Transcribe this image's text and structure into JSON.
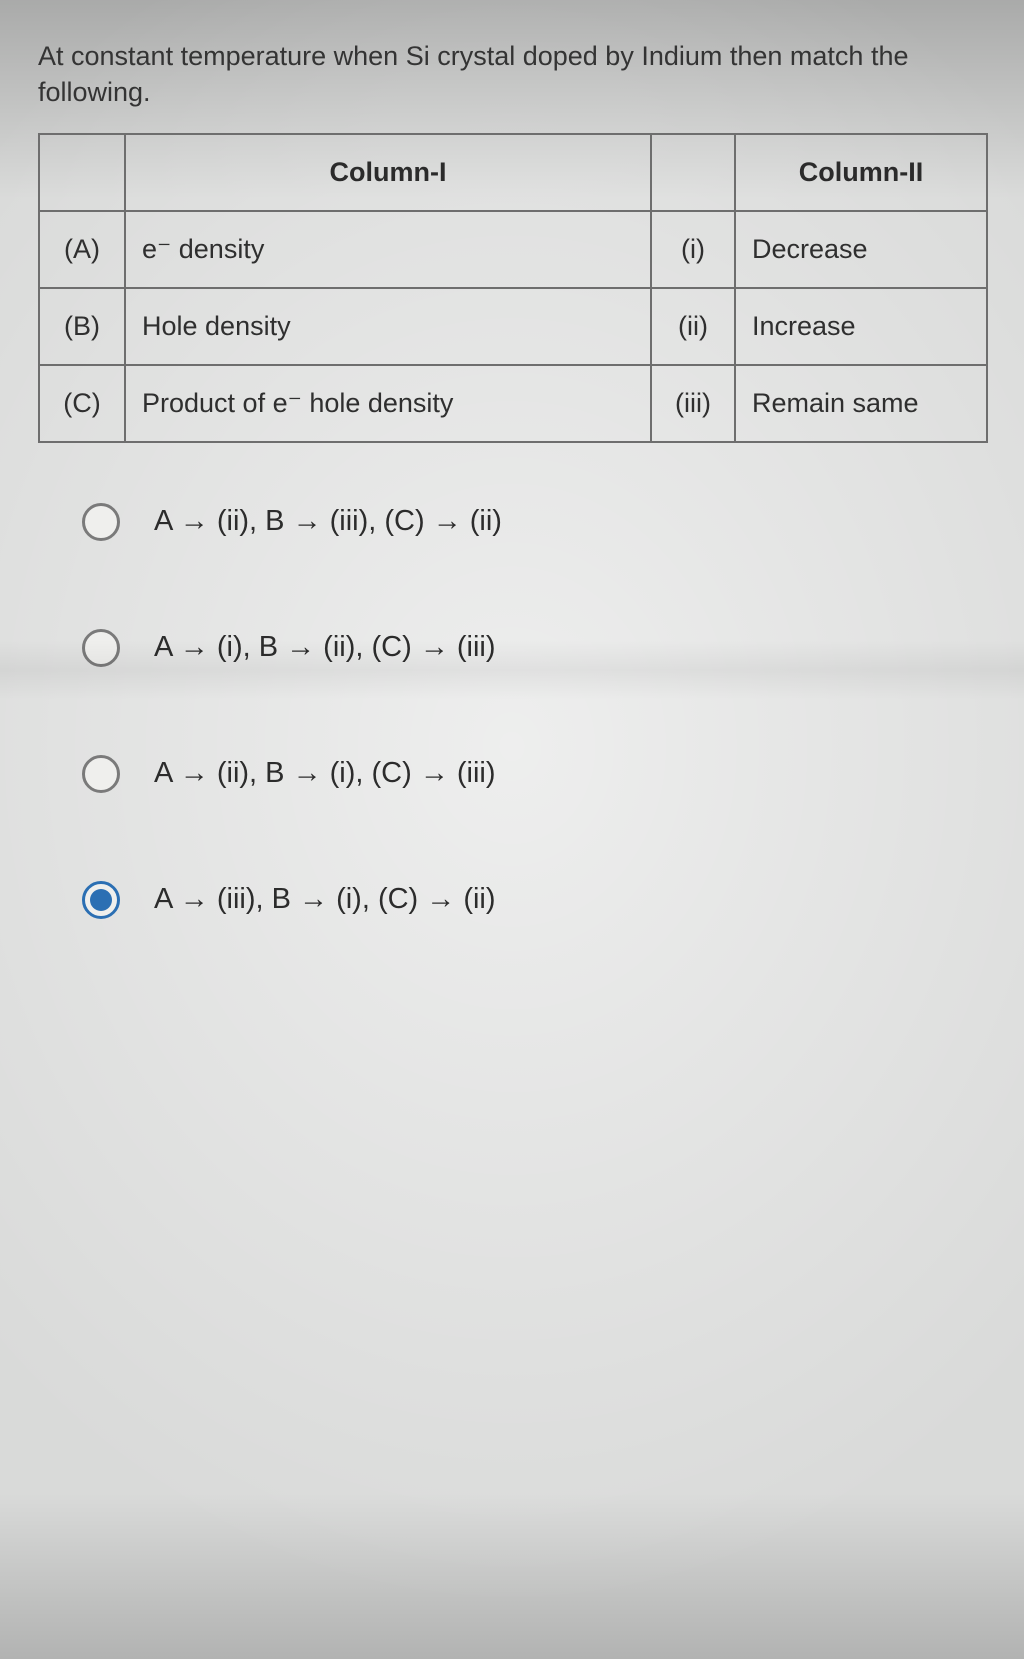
{
  "question": "At constant temperature when Si crystal doped by Indium then match the following.",
  "table": {
    "headers": {
      "col1": "Column-I",
      "col2": "Column-II"
    },
    "rows": [
      {
        "key": "(A)",
        "c1": "e⁻ density",
        "num": "(i)",
        "c2": "Decrease"
      },
      {
        "key": "(B)",
        "c1": "Hole density",
        "num": "(ii)",
        "c2": "Increase"
      },
      {
        "key": "(C)",
        "c1": "Product of e⁻ hole density",
        "num": "(iii)",
        "c2": "Remain same"
      }
    ],
    "border_color": "#6e6e6e",
    "fontsize": 27
  },
  "options": [
    {
      "label": "A → (ii), B → (iii), (C) → (ii)",
      "selected": false
    },
    {
      "label": "A → (i), B → (ii), (C) → (iii)",
      "selected": false
    },
    {
      "label": "A → (ii), B → (i), (C) → (iii)",
      "selected": false
    },
    {
      "label": "A → (iii), B → (i), (C) → (ii)",
      "selected": true
    }
  ],
  "colors": {
    "background": "#d9dad9",
    "text": "#2b2b2b",
    "radio_border": "#7a7a7a",
    "radio_selected": "#2b6fb3"
  }
}
